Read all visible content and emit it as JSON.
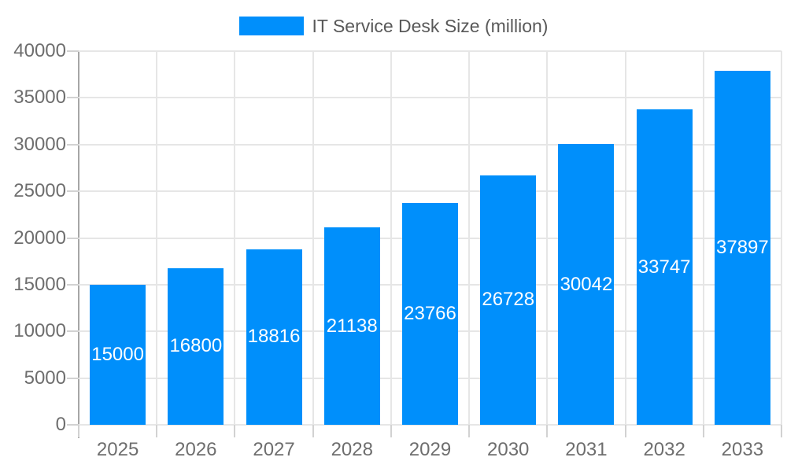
{
  "chart_data": {
    "type": "bar",
    "title": "",
    "legend": "IT Service Desk Size (million)",
    "legend_position": "top-center",
    "categories": [
      "2025",
      "2026",
      "2027",
      "2028",
      "2029",
      "2030",
      "2031",
      "2032",
      "2033"
    ],
    "values": [
      15000,
      16800,
      18816,
      21138,
      23766,
      26728,
      30042,
      33747,
      37897
    ],
    "xlabel": "",
    "ylabel": "",
    "ylim": [
      0,
      40000
    ],
    "ytick_step": 5000,
    "ytick_labels": [
      "0",
      "5000",
      "10000",
      "15000",
      "20000",
      "25000",
      "30000",
      "35000",
      "40000"
    ],
    "grid": true,
    "value_labels_shown": true
  },
  "colors": {
    "bar": "#008ffb",
    "value_label": "#ffffff",
    "grid_line": "#e6e6e6",
    "axis_line": "#a6a6a6",
    "tick_line": "#d2d2d2",
    "axis_label_text": "#6e6e6e",
    "legend_text": "#595959",
    "background": "#ffffff"
  }
}
